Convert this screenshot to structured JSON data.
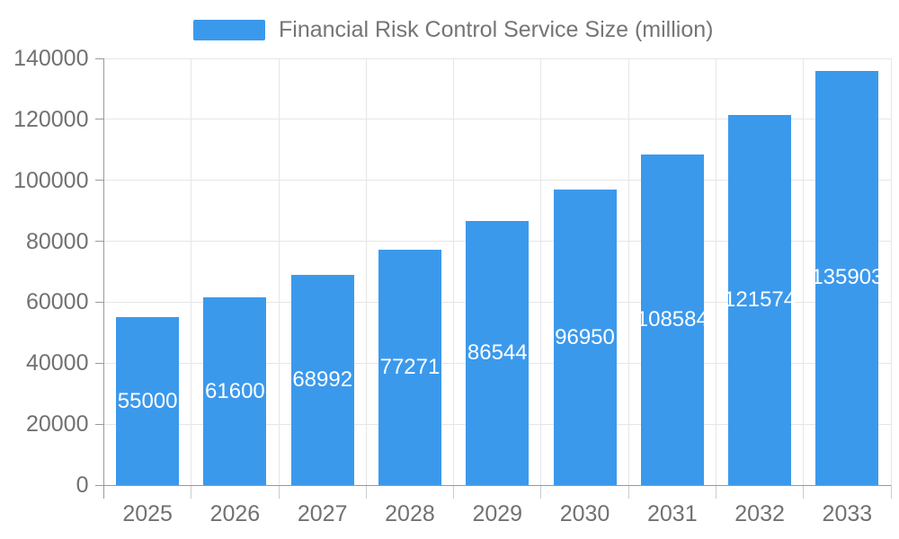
{
  "chart_data": {
    "type": "bar",
    "title": "Financial Risk Control Service Size (million)",
    "legend_position": "top",
    "categories": [
      "2025",
      "2026",
      "2027",
      "2028",
      "2029",
      "2030",
      "2031",
      "2032",
      "2033"
    ],
    "series": [
      {
        "name": "Financial Risk Control Service Size (million)",
        "values": [
          55000,
          61600,
          68992,
          77271,
          86544,
          96950,
          108584,
          121574,
          135903
        ]
      }
    ],
    "value_labels": [
      "55000",
      "61600",
      "68992",
      "77271",
      "86544",
      "96950",
      "108584",
      "121574",
      "135903"
    ],
    "xlabel": "",
    "ylabel": "",
    "ylim": [
      0,
      140000
    ],
    "y_ticks": [
      0,
      20000,
      40000,
      60000,
      80000,
      100000,
      120000,
      140000
    ],
    "y_tick_labels": [
      "0",
      "20000",
      "40000",
      "60000",
      "80000",
      "100000",
      "120000",
      "140000"
    ],
    "grid": true,
    "colors": {
      "bar": "#3B99EC",
      "value_label": "#FFFFFF",
      "axis_text": "#717171",
      "legend_text": "#757575",
      "grid_line": "#E6E6E6",
      "axis_line": "#999999",
      "tick_line": "#CCCCCC",
      "background": "#FFFFFF"
    }
  }
}
